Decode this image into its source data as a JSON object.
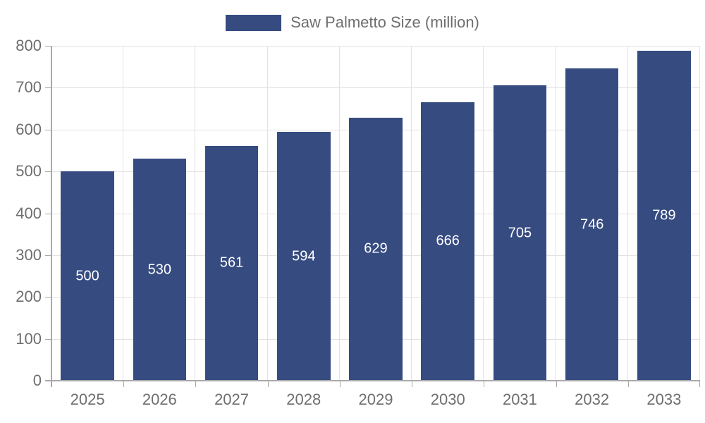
{
  "chart_data": {
    "type": "bar",
    "title": "",
    "series_name": "Saw Palmetto Size (million)",
    "categories": [
      "2025",
      "2026",
      "2027",
      "2028",
      "2029",
      "2030",
      "2031",
      "2032",
      "2033"
    ],
    "values": [
      500,
      530,
      561,
      594,
      629,
      666,
      705,
      746,
      789
    ],
    "ylim": [
      0,
      800
    ],
    "yticks": [
      0,
      100,
      200,
      300,
      400,
      500,
      600,
      700,
      800
    ],
    "grid": "horizontal and vertical category-boundary gridlines",
    "legend_position": "top-center",
    "bar_color": "#364B80",
    "value_label_color": "#ffffff",
    "axis_text_color": "#6E6E6E",
    "gridline_color": "#E2E2E2",
    "axis_line_color": "#A9A9A9",
    "bar_width_fraction": 0.74
  }
}
